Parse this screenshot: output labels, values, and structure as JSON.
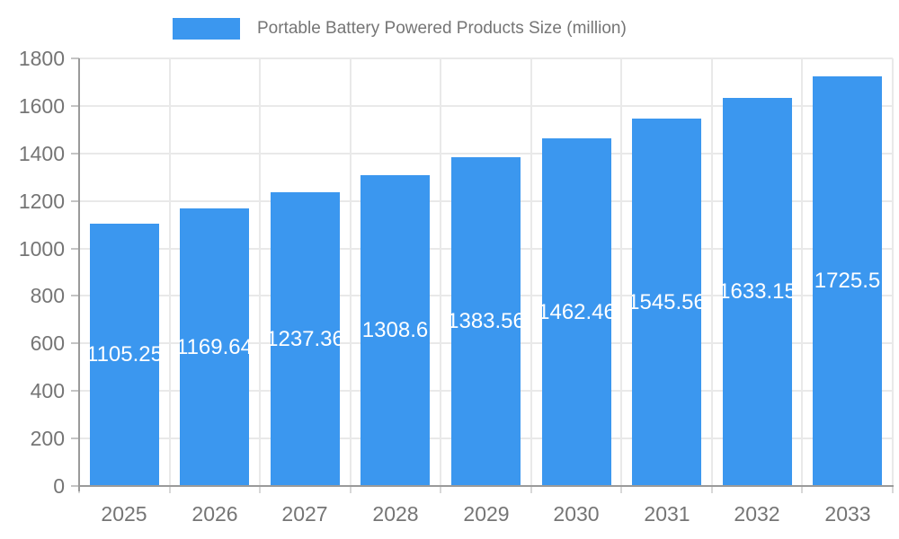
{
  "legend": {
    "label": "Portable Battery Powered Products Size (million)"
  },
  "colors": {
    "bar": "#3b97ef",
    "bar_label_text": "#ffffff",
    "axis_text": "#757575",
    "gridline": "#e9e9e9",
    "axis_line": "#9a9a9a"
  },
  "chart_data": {
    "type": "bar",
    "title": "Portable Battery Powered Products Size (million)",
    "legend_position": "top",
    "grid": true,
    "xlabel": "",
    "ylabel": "",
    "ylim": [
      0,
      1800
    ],
    "yticks": [
      0,
      200,
      400,
      600,
      800,
      1000,
      1200,
      1400,
      1600,
      1800
    ],
    "categories": [
      "2025",
      "2026",
      "2027",
      "2028",
      "2029",
      "2030",
      "2031",
      "2032",
      "2033"
    ],
    "series": [
      {
        "name": "Portable Battery Powered Products Size (million)",
        "values": [
          1105.25,
          1169.64,
          1237.36,
          1308.6,
          1383.56,
          1462.46,
          1545.56,
          1633.15,
          1725.5
        ]
      }
    ],
    "value_labels": [
      "1105.25",
      "1169.64",
      "1237.36",
      "1308.6",
      "1383.56",
      "1462.46",
      "1545.56",
      "1633.15",
      "1725.5"
    ]
  }
}
